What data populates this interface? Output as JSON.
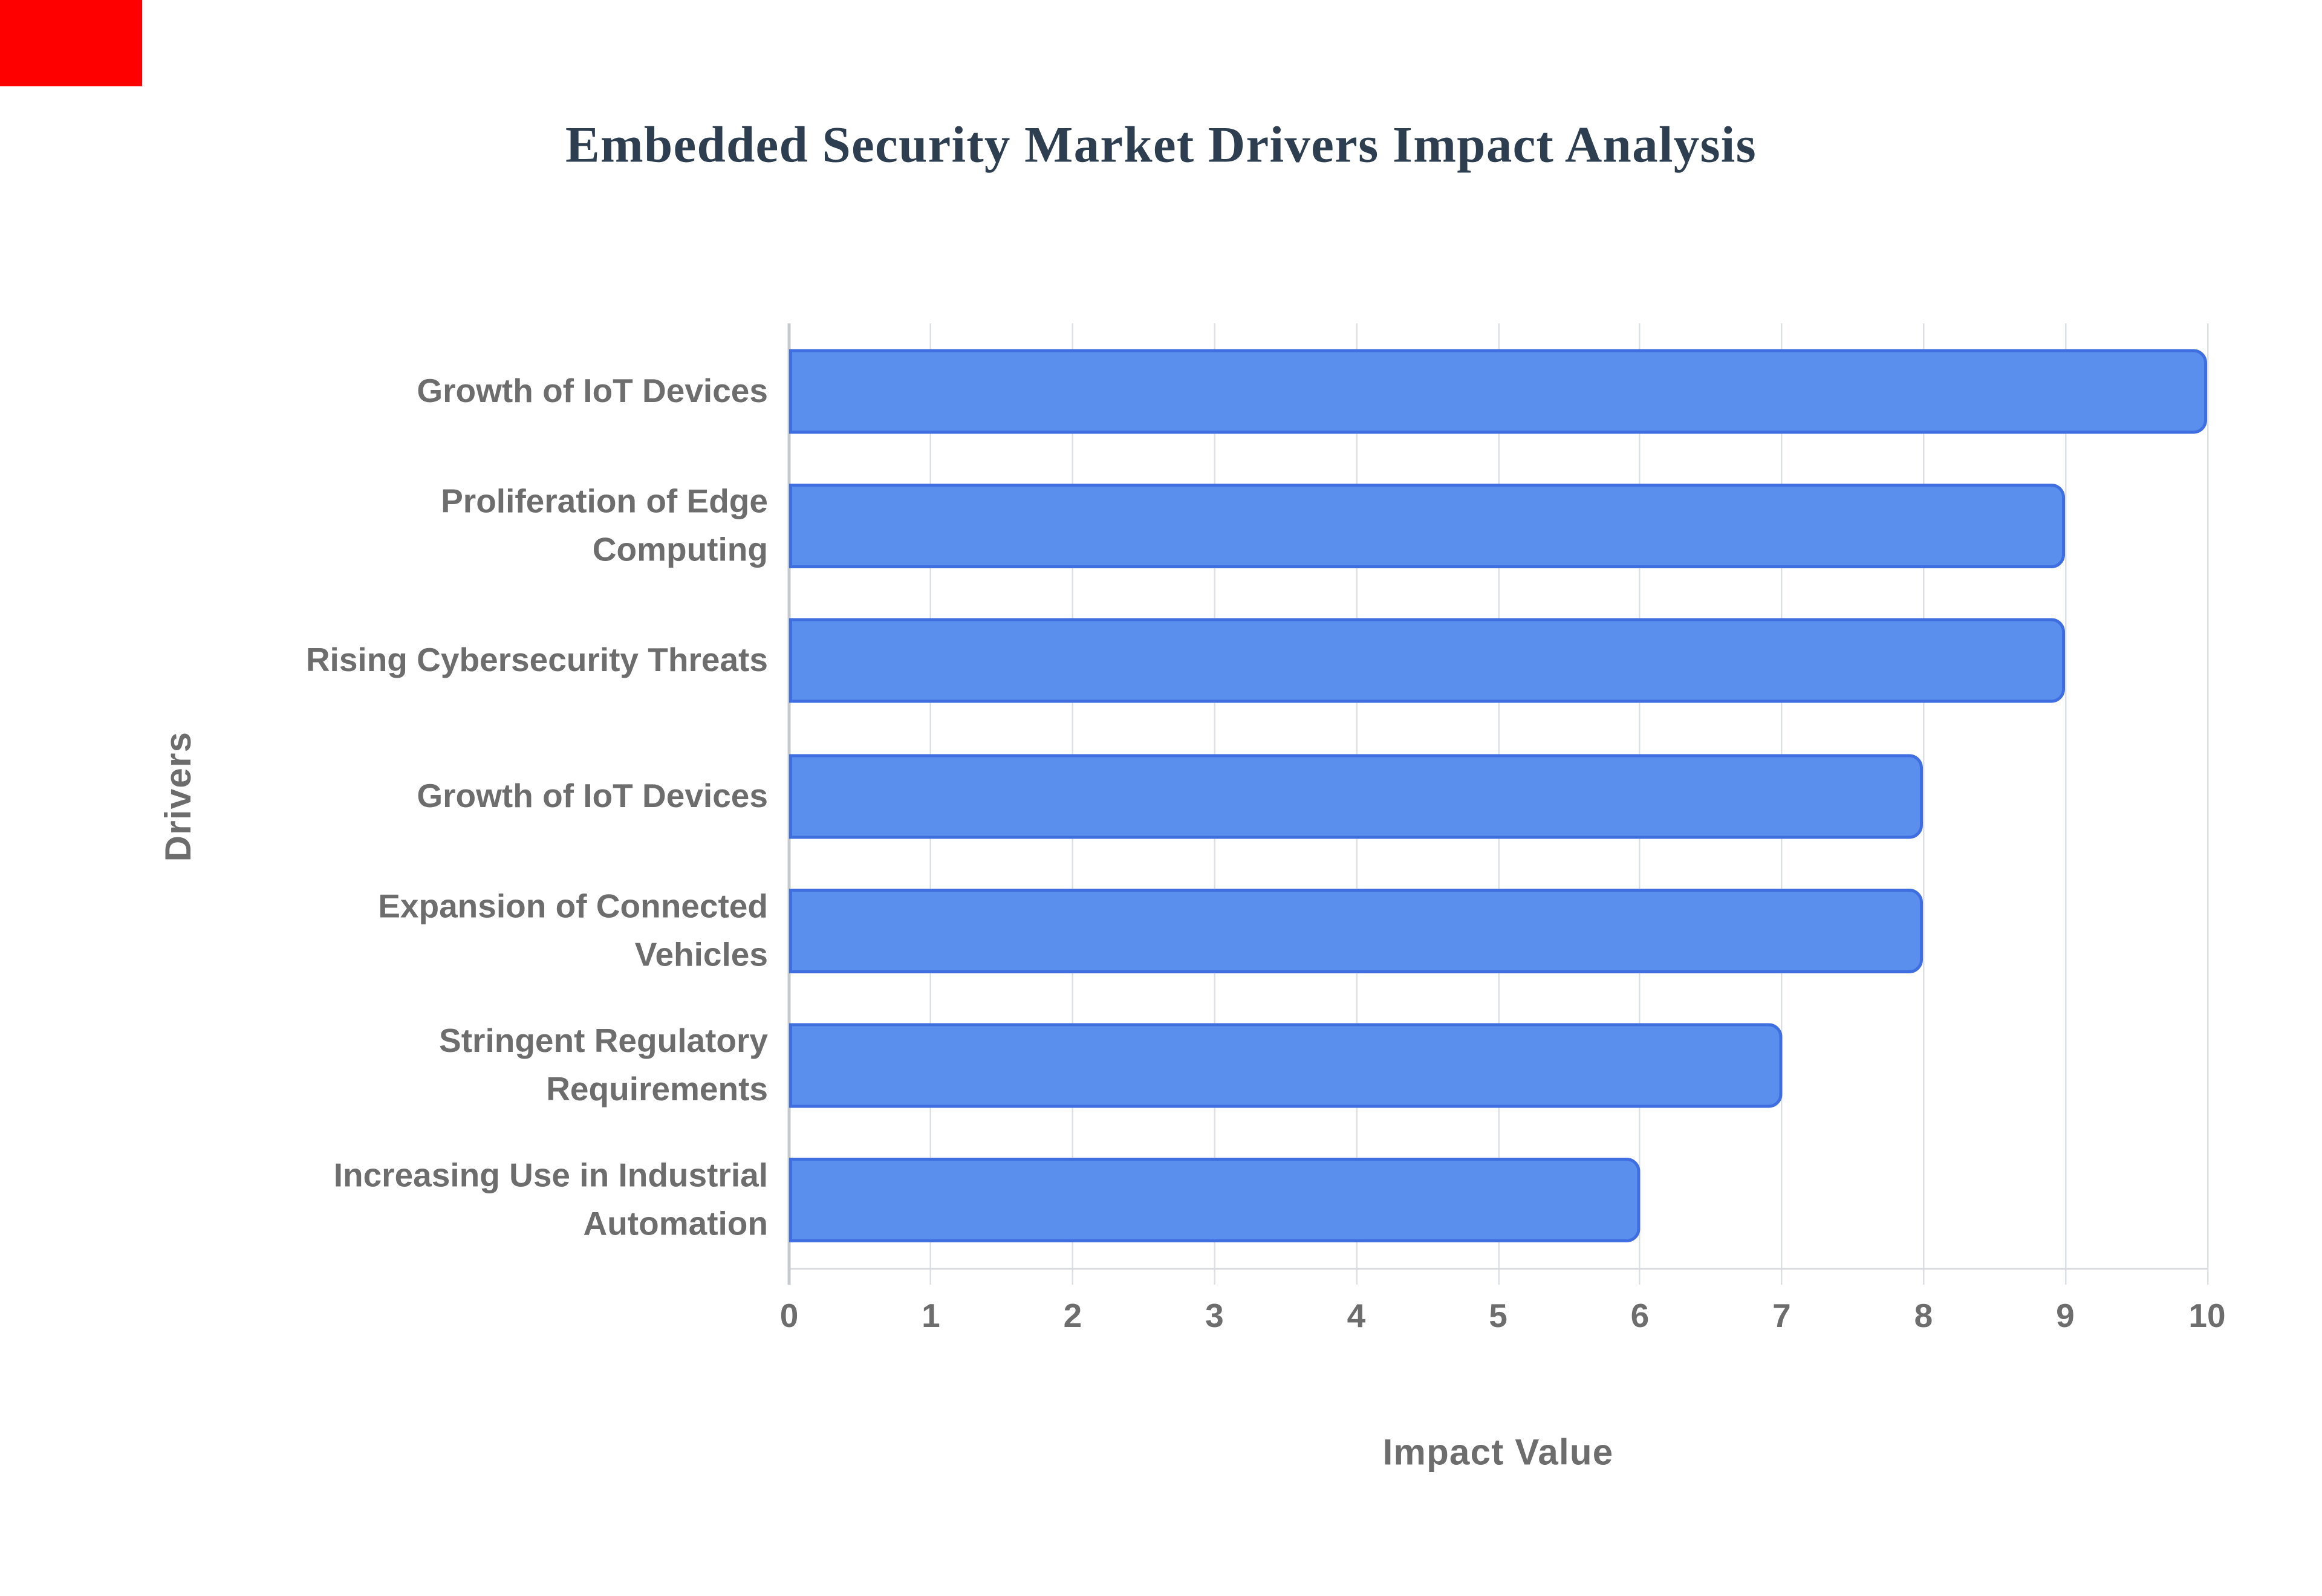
{
  "figure": {
    "background": "#ffffff"
  },
  "red_marker": {
    "color": "#ff0000"
  },
  "chart_data": {
    "type": "bar",
    "orientation": "horizontal",
    "title": "Embedded Security Market Drivers Impact Analysis",
    "xlabel": "Impact Value",
    "ylabel": "Drivers",
    "categories": [
      "Growth of IoT Devices",
      "Proliferation of Edge Computing",
      "Rising Cybersecurity Threats",
      "Growth of IoT Devices",
      "Expansion of Connected Vehicles",
      "Stringent Regulatory Requirements",
      "Increasing Use in Industrial Automation"
    ],
    "category_label_lines": [
      [
        "Growth of IoT Devices"
      ],
      [
        "Proliferation of Edge",
        "Computing"
      ],
      [
        "Rising Cybersecurity Threats"
      ],
      [
        "Growth of IoT Devices"
      ],
      [
        "Expansion of Connected",
        "Vehicles"
      ],
      [
        "Stringent Regulatory",
        "Requirements"
      ],
      [
        "Increasing Use in Industrial",
        "Automation"
      ]
    ],
    "values": [
      10,
      9,
      9,
      8,
      8,
      7,
      6
    ],
    "xlim": [
      0,
      10
    ],
    "xticks": [
      0,
      1,
      2,
      3,
      4,
      5,
      6,
      7,
      8,
      9,
      10
    ],
    "grid": true,
    "legend": false,
    "bar_color": "#5A8FED",
    "bar_border_color": "#3E6EDF",
    "title_color": "#2D3E50",
    "axis_text_color": "#6D6D6D",
    "gridline_color": "#DCE0E5",
    "baseline_color": "#D3D6DA",
    "axis_line_color": "#C7CACD"
  }
}
